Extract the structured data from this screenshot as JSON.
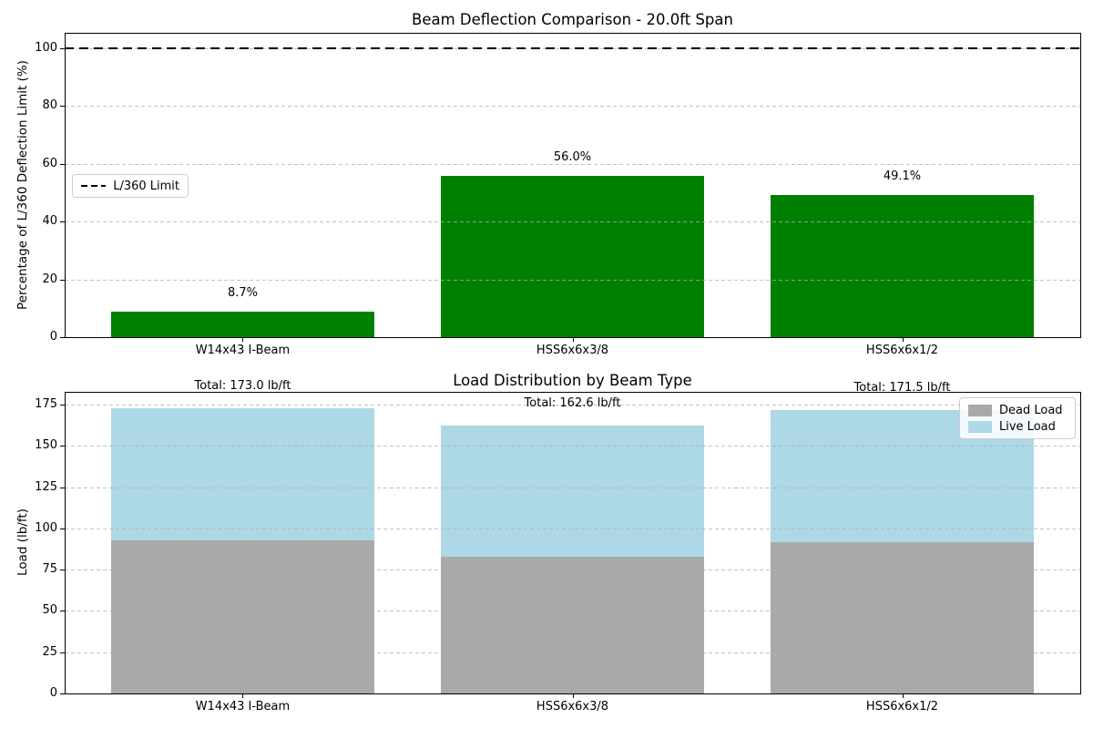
{
  "figure": {
    "background": "#ffffff"
  },
  "chart_data": [
    {
      "type": "bar",
      "title": "Beam Deflection Comparison - 20.0ft Span",
      "ylabel": "Percentage of L/360 Deflection Limit (%)",
      "xlabel": "",
      "categories": [
        "W14x43 I-Beam",
        "HSS6x6x3/8",
        "HSS6x6x1/2"
      ],
      "values": [
        8.7,
        56.0,
        49.1
      ],
      "bar_labels": [
        "8.7%",
        "56.0%",
        "49.1%"
      ],
      "bar_color": "#008000",
      "yticks": [
        0,
        20,
        40,
        60,
        80,
        100
      ],
      "ylim": [
        0,
        105.4
      ],
      "grid": "y-dashed",
      "reference_line": {
        "value": 100,
        "color": "#000000",
        "style": "dashed"
      },
      "legend": {
        "position": "center-left",
        "entries": [
          {
            "label": "L/360 Limit",
            "marker": "dashed-line",
            "color": "#000000"
          }
        ]
      }
    },
    {
      "type": "stacked-bar",
      "title": "Load Distribution by Beam Type",
      "ylabel": "Load (lb/ft)",
      "xlabel": "",
      "categories": [
        "W14x43 I-Beam",
        "HSS6x6x3/8",
        "HSS6x6x1/2"
      ],
      "series": [
        {
          "name": "Dead Load",
          "color": "#a9a9a9",
          "values": [
            93.0,
            82.6,
            91.5
          ]
        },
        {
          "name": "Live Load",
          "color": "#add8e6",
          "values": [
            80.0,
            80.0,
            80.0
          ]
        }
      ],
      "totals": [
        173.0,
        162.6,
        171.5
      ],
      "total_labels": [
        "Total: 173.0 lb/ft",
        "Total: 162.6 lb/ft",
        "Total: 171.5 lb/ft"
      ],
      "yticks": [
        0,
        25,
        50,
        75,
        100,
        125,
        150,
        175
      ],
      "ylim": [
        0,
        182.8
      ],
      "grid": "y-dashed",
      "legend": {
        "position": "top-right",
        "entries": [
          {
            "label": "Dead Load",
            "marker": "swatch",
            "color": "#a9a9a9"
          },
          {
            "label": "Live Load",
            "marker": "swatch",
            "color": "#add8e6"
          }
        ]
      }
    }
  ]
}
